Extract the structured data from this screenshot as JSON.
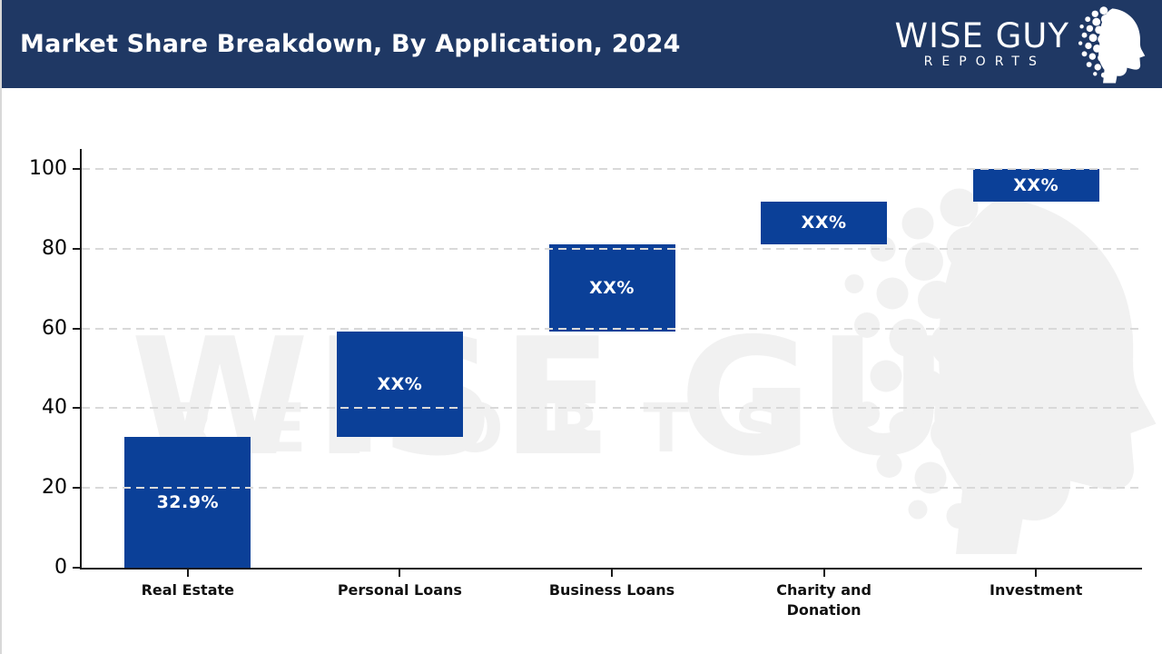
{
  "header": {
    "title": "Market Share Breakdown, By Application, 2024",
    "logo": {
      "line1": "WISE GUY",
      "line2": "REPORTS"
    }
  },
  "watermark": {
    "line1": "WISE GUY",
    "line2": "REPORTS"
  },
  "colors": {
    "header_bg": "#1f3864",
    "bar": "#0b4098",
    "grid": "#d9d9d9",
    "axis": "#1a1a1a",
    "watermark": "#f1f1f1"
  },
  "chart_data": {
    "type": "bar",
    "subtype": "waterfall",
    "title": "Market Share Breakdown, By Application, 2024",
    "xlabel": "",
    "ylabel": "",
    "categories": [
      "Real Estate",
      "Personal Loans",
      "Business Loans",
      "Charity and Donation",
      "Investment"
    ],
    "segments": [
      {
        "category": "Real Estate",
        "start": 0,
        "end": 32.9,
        "label": "32.9%"
      },
      {
        "category": "Personal Loans",
        "start": 32.9,
        "end": 59.3,
        "label": "XX%"
      },
      {
        "category": "Business Loans",
        "start": 59.3,
        "end": 81.0,
        "label": "XX%"
      },
      {
        "category": "Charity and Donation",
        "start": 81.0,
        "end": 91.9,
        "label": "XX%"
      },
      {
        "category": "Investment",
        "start": 91.9,
        "end": 100.0,
        "label": "XX%"
      }
    ],
    "yticks": [
      0,
      20,
      40,
      60,
      80,
      100
    ],
    "ylim": [
      0,
      105
    ],
    "grid": "horizontal dashed, drawn over bars",
    "legend": "none"
  }
}
